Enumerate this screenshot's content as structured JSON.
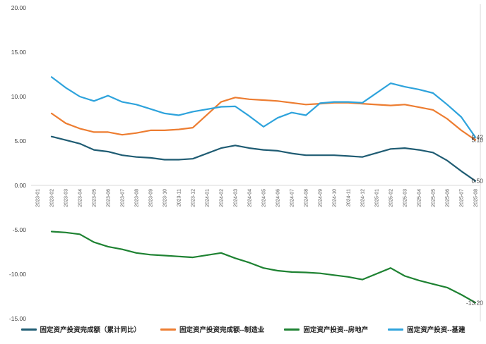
{
  "chart_data": {
    "type": "line",
    "title": "",
    "xlabel": "",
    "ylabel": "",
    "legend_position": "bottom",
    "grid": "zero-axis-line-only",
    "categories": [
      "2023-01",
      "2023-02",
      "2023-03",
      "2023-04",
      "2023-05",
      "2023-06",
      "2023-07",
      "2023-08",
      "2023-09",
      "2023-10",
      "2023-11",
      "2023-12",
      "2024-01",
      "2024-02",
      "2024-03",
      "2024-04",
      "2024-05",
      "2024-06",
      "2024-07",
      "2024-08",
      "2024-09",
      "2024-10",
      "2024-11",
      "2024-12",
      "2025-01",
      "2025-02",
      "2025-03",
      "2025-04",
      "2025-05",
      "2025-06",
      "2025-07",
      "2025-08"
    ],
    "y_axis": {
      "min": -15,
      "max": 20,
      "step": 5,
      "tick_values": [
        20,
        15,
        10,
        5,
        0,
        -5,
        -10,
        -15
      ],
      "tick_labels": [
        "20.00",
        "15.00",
        "10.00",
        "5.00",
        "0.00",
        "-5.00",
        "-10.00",
        "-15.00"
      ]
    },
    "series": [
      {
        "key": "total-fai",
        "name": "固定资产投资完成额（累计同比）",
        "color": "#1F5C73",
        "end_label": "0.50",
        "values": [
          null,
          5.5,
          5.1,
          4.7,
          4.0,
          3.8,
          3.4,
          3.2,
          3.1,
          2.9,
          2.9,
          3.0,
          null,
          4.2,
          4.5,
          4.2,
          4.0,
          3.9,
          3.6,
          3.4,
          3.4,
          3.4,
          3.3,
          3.2,
          null,
          4.1,
          4.2,
          4.0,
          3.7,
          2.8,
          1.6,
          0.5
        ]
      },
      {
        "key": "manufacturing",
        "name": "固定资产投资完成额--制造业",
        "color": "#ED7D31",
        "end_label": "5.10",
        "values": [
          null,
          8.1,
          7.0,
          6.4,
          6.0,
          6.0,
          5.7,
          5.9,
          6.2,
          6.2,
          6.3,
          6.5,
          null,
          9.4,
          9.9,
          9.7,
          9.6,
          9.5,
          9.3,
          9.1,
          9.2,
          9.3,
          9.3,
          9.2,
          null,
          9.0,
          9.1,
          8.8,
          8.5,
          7.5,
          6.2,
          5.1
        ]
      },
      {
        "key": "real-estate",
        "name": "固定资产投资--房地产",
        "color": "#1E8232",
        "end_label": "-13.20",
        "values": [
          null,
          -5.2,
          -5.3,
          -5.5,
          -6.4,
          -6.9,
          -7.2,
          -7.6,
          -7.8,
          -7.9,
          -8.0,
          -8.1,
          null,
          -7.6,
          -8.2,
          -8.7,
          -9.3,
          -9.6,
          -9.75,
          -9.8,
          -9.9,
          -10.1,
          -10.3,
          -10.6,
          null,
          -9.3,
          -10.2,
          -10.7,
          -11.1,
          -11.5,
          -12.3,
          -13.2
        ]
      },
      {
        "key": "infrastructure",
        "name": "固定资产投资--基建",
        "color": "#2EA3DC",
        "end_label": "5.42",
        "values": [
          null,
          12.2,
          11.0,
          10.0,
          9.5,
          10.1,
          9.4,
          9.1,
          8.6,
          8.1,
          7.9,
          8.3,
          null,
          8.85,
          8.9,
          7.8,
          6.6,
          7.6,
          8.2,
          7.9,
          9.25,
          9.4,
          9.4,
          9.3,
          null,
          11.5,
          11.1,
          10.8,
          10.4,
          9.1,
          7.7,
          5.42
        ]
      }
    ]
  },
  "colors": {
    "background": "#FFFFFF",
    "axis_line": "#D9D9D9",
    "x_tick_text": "#595959",
    "y_tick_text": "#404040",
    "end_label_text": "#3F3F3F"
  }
}
